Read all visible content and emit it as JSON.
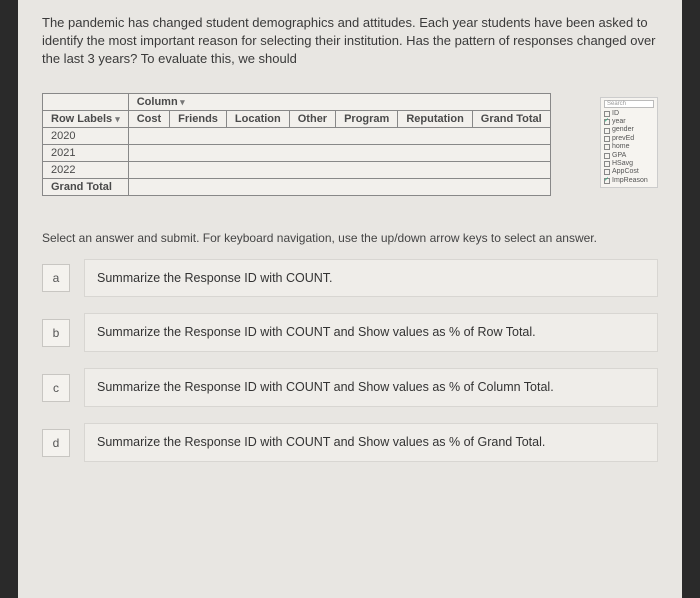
{
  "question": "The pandemic has changed student demographics and attitudes. Each year students have been asked to identify the most important reason for selecting their institution. Has the pattern of responses changed over the last 3 years? To evaluate this, we should",
  "pivot": {
    "columns_dropdown": "Column",
    "row_labels_hdr": "Row Labels",
    "cols": [
      "Cost",
      "Friends",
      "Location",
      "Other",
      "Program",
      "Reputation",
      "Grand Total"
    ],
    "rows": [
      "2020",
      "2021",
      "2022"
    ],
    "grand_total": "Grand Total"
  },
  "fields": {
    "search": "Search",
    "items": [
      {
        "label": "ID",
        "checked": false
      },
      {
        "label": "year",
        "checked": true
      },
      {
        "label": "gender",
        "checked": false
      },
      {
        "label": "prevEd",
        "checked": false
      },
      {
        "label": "home",
        "checked": false
      },
      {
        "label": "GPA",
        "checked": false
      },
      {
        "label": "HSavg",
        "checked": false
      },
      {
        "label": "AppCost",
        "checked": false
      },
      {
        "label": "ImpReason",
        "checked": true
      }
    ]
  },
  "instruction": "Select an answer and submit. For keyboard navigation, use the up/down arrow keys to select an answer.",
  "answers": {
    "a": {
      "key": "a",
      "text": "Summarize the Response ID with COUNT."
    },
    "b": {
      "key": "b",
      "text": "Summarize the Response ID with COUNT and Show values as % of Row Total."
    },
    "c": {
      "key": "c",
      "text": "Summarize the Response ID with COUNT and Show values as % of Column Total."
    },
    "d": {
      "key": "d",
      "text": "Summarize the Response ID with COUNT and Show values as % of Grand Total."
    }
  }
}
